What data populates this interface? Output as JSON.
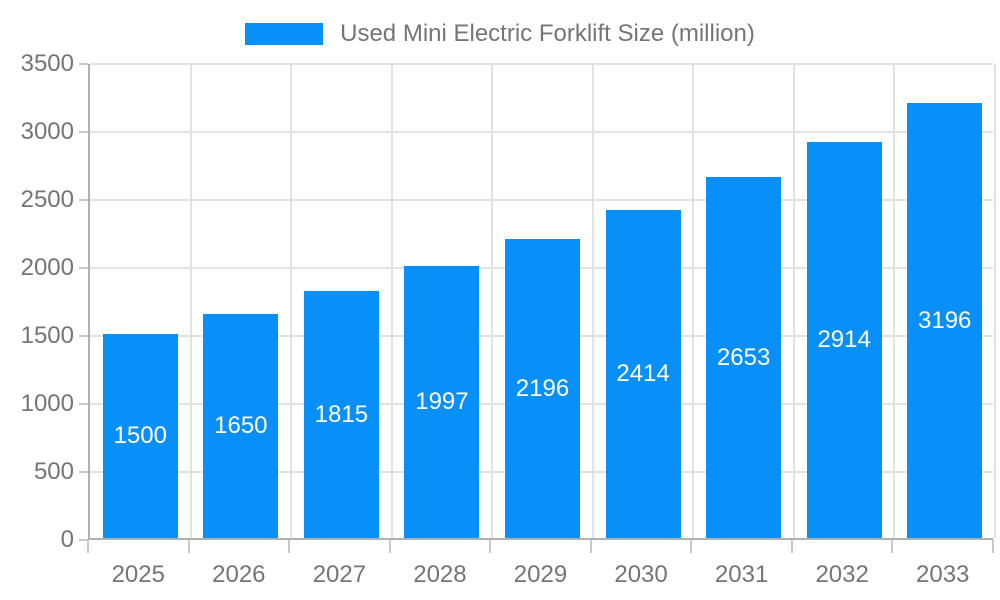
{
  "chart_data": {
    "type": "bar",
    "title": "Used Mini Electric Forklift Size (million)",
    "legend": {
      "position": "top",
      "label": "Used Mini Electric Forklift Size (million)"
    },
    "categories": [
      "2025",
      "2026",
      "2027",
      "2028",
      "2029",
      "2030",
      "2031",
      "2032",
      "2033"
    ],
    "values": [
      1500,
      1650,
      1815,
      1997,
      2196,
      2414,
      2653,
      2914,
      3196
    ],
    "xlabel": "",
    "ylabel": "",
    "ylim": [
      0,
      3500
    ],
    "y_ticks": [
      0,
      500,
      1000,
      1500,
      2000,
      2500,
      3000,
      3500
    ],
    "grid": true,
    "bar_value_labels_visible": true,
    "colors": {
      "bar": "#0990F8",
      "bar_label": "#FFFFFF",
      "axis_text": "#757575",
      "grid_line": "#E2E2E2",
      "axis_line": "#B0B0B0",
      "tick": "#C9C9C9",
      "background": "#FFFFFF"
    }
  }
}
